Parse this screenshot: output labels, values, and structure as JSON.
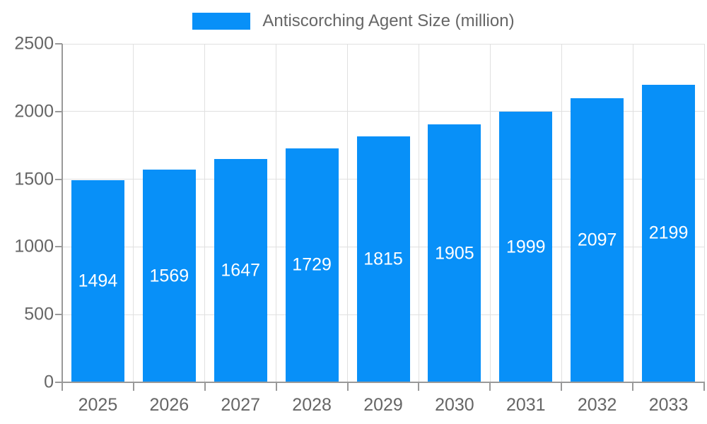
{
  "chart_data": {
    "type": "bar",
    "legend": "Antiscorching Agent Size (million)",
    "legend_position": "top-center",
    "categories": [
      "2025",
      "2026",
      "2027",
      "2028",
      "2029",
      "2030",
      "2031",
      "2032",
      "2033"
    ],
    "values": [
      1494,
      1569,
      1647,
      1729,
      1815,
      1905,
      1999,
      2097,
      2199
    ],
    "title": "",
    "xlabel": "",
    "ylabel": "",
    "ylim": [
      0,
      2500
    ],
    "yticks": [
      0,
      500,
      1000,
      1500,
      2000,
      2500
    ],
    "grid": true,
    "bar_color": "#0890F8",
    "colors": {
      "text": "#666666",
      "axis": "#999999",
      "grid": "#E0E0E0",
      "bar_label": "#FFFFFF"
    }
  }
}
